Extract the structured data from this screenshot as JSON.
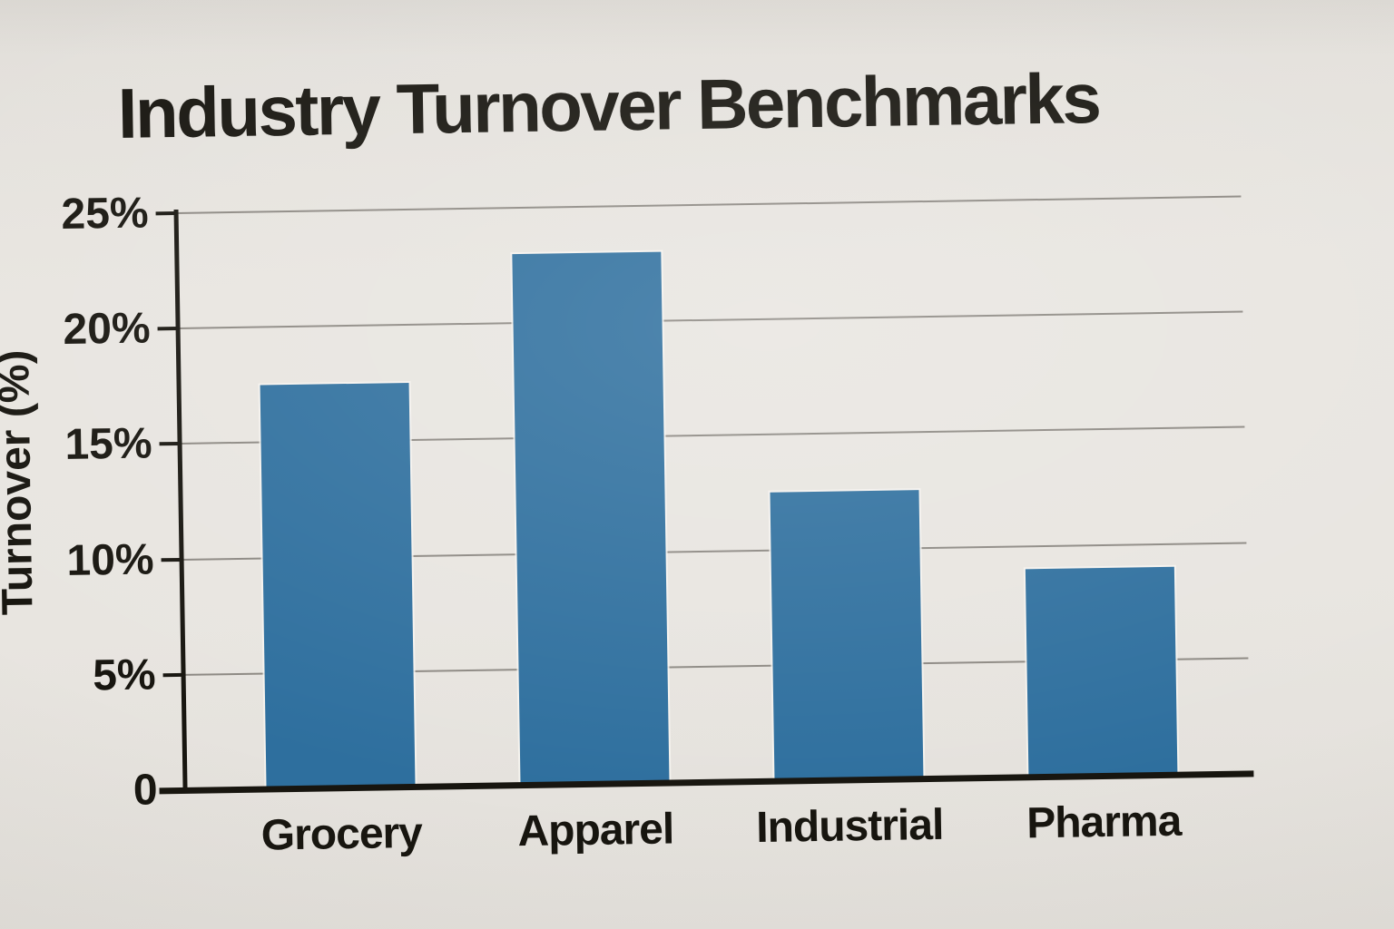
{
  "page": {
    "background_color": "#e8e5e0",
    "background_color_dark": "#e2dfda",
    "text_color": "#17150f"
  },
  "chart_data": {
    "type": "bar",
    "title": "Industry Turnover Benchmarks",
    "xlabel": "",
    "ylabel": "Turnover (%)",
    "categories": [
      "Grocery",
      "Apparel",
      "Industrial",
      "Pharma"
    ],
    "values": [
      17.5,
      23,
      12.5,
      9
    ],
    "unit": "%",
    "ylim": [
      0,
      25
    ],
    "ytick_interval": 5,
    "yticks": [
      {
        "value": 0,
        "label": "0"
      },
      {
        "value": 5,
        "label": "5%"
      },
      {
        "value": 10,
        "label": "10%"
      },
      {
        "value": 15,
        "label": "15%"
      },
      {
        "value": 20,
        "label": "20%"
      },
      {
        "value": 25,
        "label": "25%"
      }
    ],
    "bar_color": "#2e6f9e",
    "gridline_color": "#8c8882",
    "axis_color": "#17150f",
    "grid": "horizontal",
    "legend": null
  }
}
